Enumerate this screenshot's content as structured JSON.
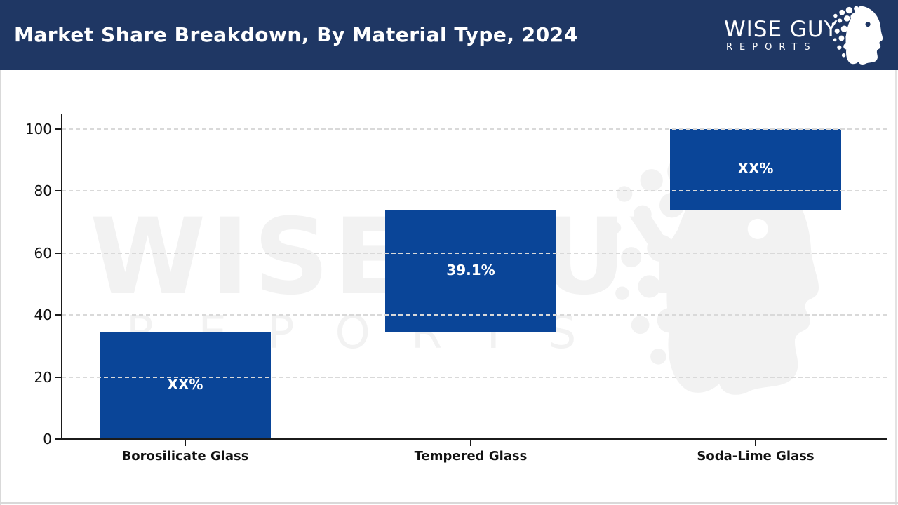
{
  "header": {
    "title": "Market Share Breakdown, By Material Type, 2024",
    "logo": {
      "line1": "WISE GUY",
      "line2": "REPORTS"
    }
  },
  "watermark": {
    "line1": "WISE GUY",
    "line2": "REPORTS"
  },
  "chart_data": {
    "type": "bar",
    "subtype": "waterfall-floating-bars",
    "title": "Market Share Breakdown, By Material Type, 2024",
    "categories": [
      "Borosilicate Glass",
      "Tempered Glass",
      "Soda-Lime Glass"
    ],
    "segments": [
      {
        "category": "Borosilicate Glass",
        "start": 0,
        "end": 34.6,
        "label": "XX%"
      },
      {
        "category": "Tempered Glass",
        "start": 34.6,
        "end": 73.7,
        "label": "39.1%"
      },
      {
        "category": "Soda-Lime Glass",
        "start": 73.7,
        "end": 100,
        "label": "XX%"
      }
    ],
    "bar_labels": [
      "XX%",
      "39.1%",
      "XX%"
    ],
    "xlabel": "",
    "ylabel": "",
    "ylim": [
      0,
      100
    ],
    "yticks": [
      0,
      20,
      40,
      60,
      80,
      100
    ],
    "grid": "horizontal-dashed",
    "legend": "none",
    "colors": {
      "bar": "#0a4598",
      "bar_label": "#ffffff",
      "header_bg": "#1f3764",
      "grid": "#d9d9d9",
      "axis": "#1b1b1b",
      "watermark": "#f2f2f2"
    }
  }
}
